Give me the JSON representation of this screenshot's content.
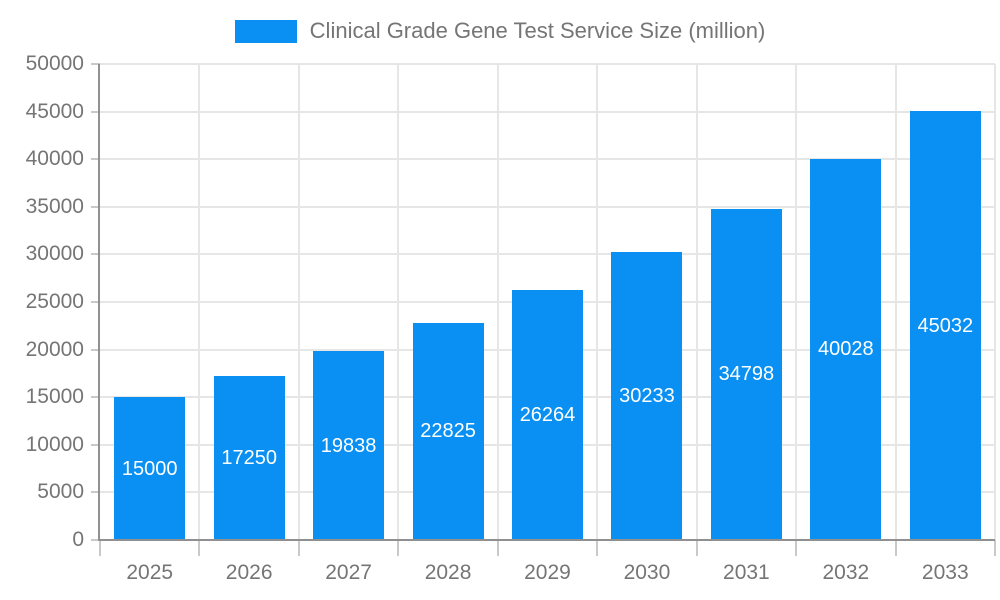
{
  "chart_data": {
    "type": "bar",
    "title": "Clinical Grade Gene Test Service Size (million)",
    "categories": [
      "2025",
      "2026",
      "2027",
      "2028",
      "2029",
      "2030",
      "2031",
      "2032",
      "2033"
    ],
    "values": [
      15000,
      17250,
      19838,
      22825,
      26264,
      30233,
      34798,
      40028,
      45032
    ],
    "xlabel": "",
    "ylabel": "",
    "ylim": [
      0,
      50000
    ],
    "ytick_step": 5000,
    "ytick_labels": [
      "0",
      "5000",
      "10000",
      "15000",
      "20000",
      "25000",
      "30000",
      "35000",
      "40000",
      "45000",
      "50000"
    ],
    "grid": true,
    "legend_position": "top",
    "colors": {
      "bar": "#0a90f2",
      "value_label": "#ffffff",
      "axis_line": "#909090",
      "gridline": "#e6e6e6",
      "tick_mark": "#c9c9c9",
      "tick_text": "#757575",
      "legend_text": "#757575",
      "background": "#ffffff"
    }
  },
  "legend": {
    "label": "Clinical Grade Gene Test Service Size (million)"
  }
}
